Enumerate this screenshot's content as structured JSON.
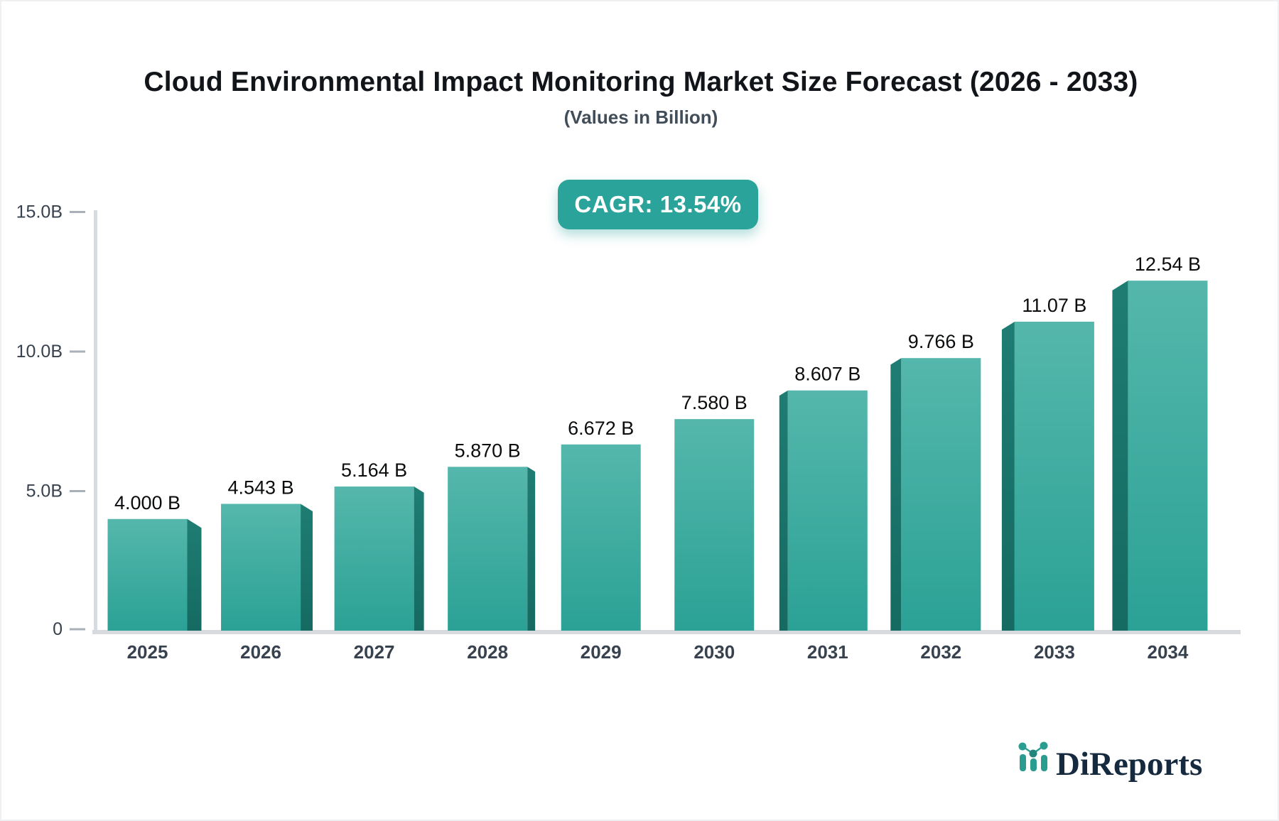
{
  "page": {
    "title": "Cloud Environmental Impact Monitoring Market Size Forecast (2026 - 2033)",
    "subtitle": "(Values in Billion)"
  },
  "badge": {
    "label": "CAGR: 13.54%",
    "bg_color": "#2aa49a",
    "text_color": "#ffffff"
  },
  "chart_data": {
    "type": "bar",
    "title": "Cloud Environmental Impact Monitoring Market Size Forecast (2026 - 2033)",
    "subtitle": "(Values in Billion)",
    "cagr": "13.54%",
    "categories": [
      "2025",
      "2026",
      "2027",
      "2028",
      "2029",
      "2030",
      "2031",
      "2032",
      "2033",
      "2034"
    ],
    "values": [
      4.0,
      4.543,
      5.164,
      5.87,
      6.672,
      7.58,
      8.607,
      9.766,
      11.07,
      12.54
    ],
    "value_labels": [
      "4.000 B",
      "4.543 B",
      "5.164 B",
      "5.870 B",
      "6.672 B",
      "7.580 B",
      "8.607 B",
      "9.766 B",
      "11.07 B",
      "12.54 B"
    ],
    "unit": "Billion",
    "xlabel": "",
    "ylabel": "",
    "ylim": [
      0,
      15
    ],
    "yticks": [
      {
        "value": 0,
        "label": "0"
      },
      {
        "value": 5,
        "label": "5.0B"
      },
      {
        "value": 10,
        "label": "10.0B"
      },
      {
        "value": 15,
        "label": "15.0B"
      }
    ],
    "grid": false,
    "legend": false,
    "bar_face_top_color": "#55b7ac",
    "bar_face_bottom_color": "#2ba195",
    "bar_side_color": "#1e7d73",
    "axis_color": "#d7dbe0",
    "tick_color": "#a9b0b8",
    "tick_label_color": "#37424e",
    "value_label_color": "#0a0c0e",
    "category_label_color": "#37424e"
  },
  "logo": {
    "text": "DiReports",
    "icon": "mini-bar-chart-icon",
    "text_color": "#15293f",
    "accent_color": "#2b9c90"
  }
}
